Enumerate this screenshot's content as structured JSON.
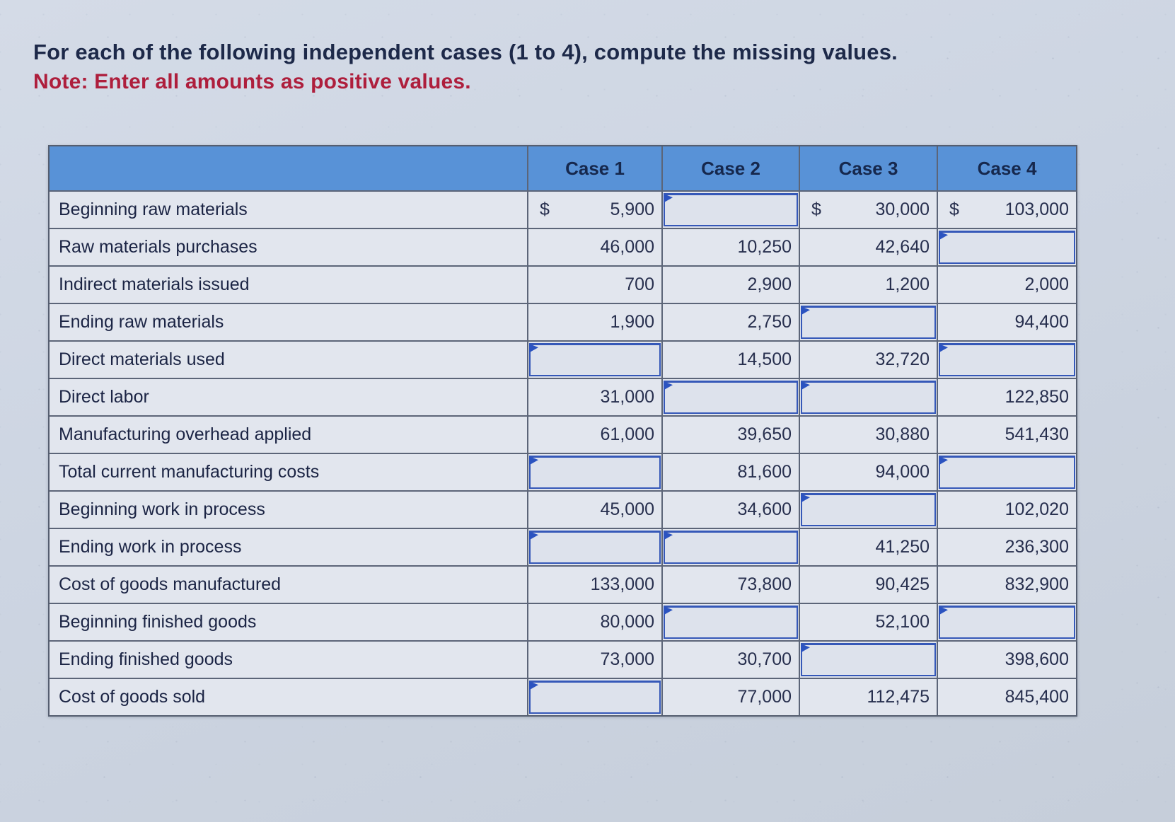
{
  "title_line1": "For each of the following independent cases (1 to 4), compute the missing values.",
  "title_line2": "Note: Enter all amounts as positive values.",
  "table": {
    "columns": [
      "Case 1",
      "Case 2",
      "Case 3",
      "Case 4"
    ],
    "currency_symbol": "$",
    "rows": [
      {
        "label": "Beginning raw materials",
        "cells": [
          {
            "dollar": true,
            "value": "5,900"
          },
          {
            "input": true
          },
          {
            "dollar": true,
            "value": "30,000"
          },
          {
            "dollar": true,
            "value": "103,000"
          }
        ]
      },
      {
        "label": "Raw materials purchases",
        "cells": [
          {
            "value": "46,000"
          },
          {
            "value": "10,250"
          },
          {
            "value": "42,640"
          },
          {
            "input": true
          }
        ]
      },
      {
        "label": "Indirect materials issued",
        "cells": [
          {
            "value": "700"
          },
          {
            "value": "2,900"
          },
          {
            "value": "1,200"
          },
          {
            "value": "2,000"
          }
        ]
      },
      {
        "label": "Ending raw materials",
        "cells": [
          {
            "value": "1,900"
          },
          {
            "value": "2,750"
          },
          {
            "input": true
          },
          {
            "value": "94,400"
          }
        ]
      },
      {
        "label": "Direct materials used",
        "cells": [
          {
            "input": true
          },
          {
            "value": "14,500"
          },
          {
            "value": "32,720"
          },
          {
            "input": true
          }
        ]
      },
      {
        "label": "Direct labor",
        "cells": [
          {
            "value": "31,000"
          },
          {
            "input": true
          },
          {
            "input": true
          },
          {
            "value": "122,850"
          }
        ]
      },
      {
        "label": "Manufacturing overhead applied",
        "cells": [
          {
            "value": "61,000"
          },
          {
            "value": "39,650"
          },
          {
            "value": "30,880"
          },
          {
            "value": "541,430"
          }
        ]
      },
      {
        "label": "Total current manufacturing costs",
        "cells": [
          {
            "input": true
          },
          {
            "value": "81,600"
          },
          {
            "value": "94,000"
          },
          {
            "input": true
          }
        ]
      },
      {
        "label": "Beginning work in process",
        "cells": [
          {
            "value": "45,000"
          },
          {
            "value": "34,600"
          },
          {
            "input": true
          },
          {
            "value": "102,020"
          }
        ]
      },
      {
        "label": "Ending work in process",
        "cells": [
          {
            "input": true
          },
          {
            "input": true
          },
          {
            "value": "41,250"
          },
          {
            "value": "236,300"
          }
        ]
      },
      {
        "label": "Cost of goods manufactured",
        "cells": [
          {
            "value": "133,000"
          },
          {
            "value": "73,800"
          },
          {
            "value": "90,425"
          },
          {
            "value": "832,900"
          }
        ]
      },
      {
        "label": "Beginning finished goods",
        "cells": [
          {
            "value": "80,000"
          },
          {
            "input": true
          },
          {
            "value": "52,100"
          },
          {
            "input": true
          }
        ]
      },
      {
        "label": "Ending finished goods",
        "cells": [
          {
            "value": "73,000"
          },
          {
            "value": "30,700"
          },
          {
            "input": true
          },
          {
            "value": "398,600"
          }
        ]
      },
      {
        "label": "Cost of goods sold",
        "cells": [
          {
            "input": true
          },
          {
            "value": "77,000"
          },
          {
            "value": "112,475"
          },
          {
            "value": "845,400"
          }
        ]
      }
    ]
  }
}
